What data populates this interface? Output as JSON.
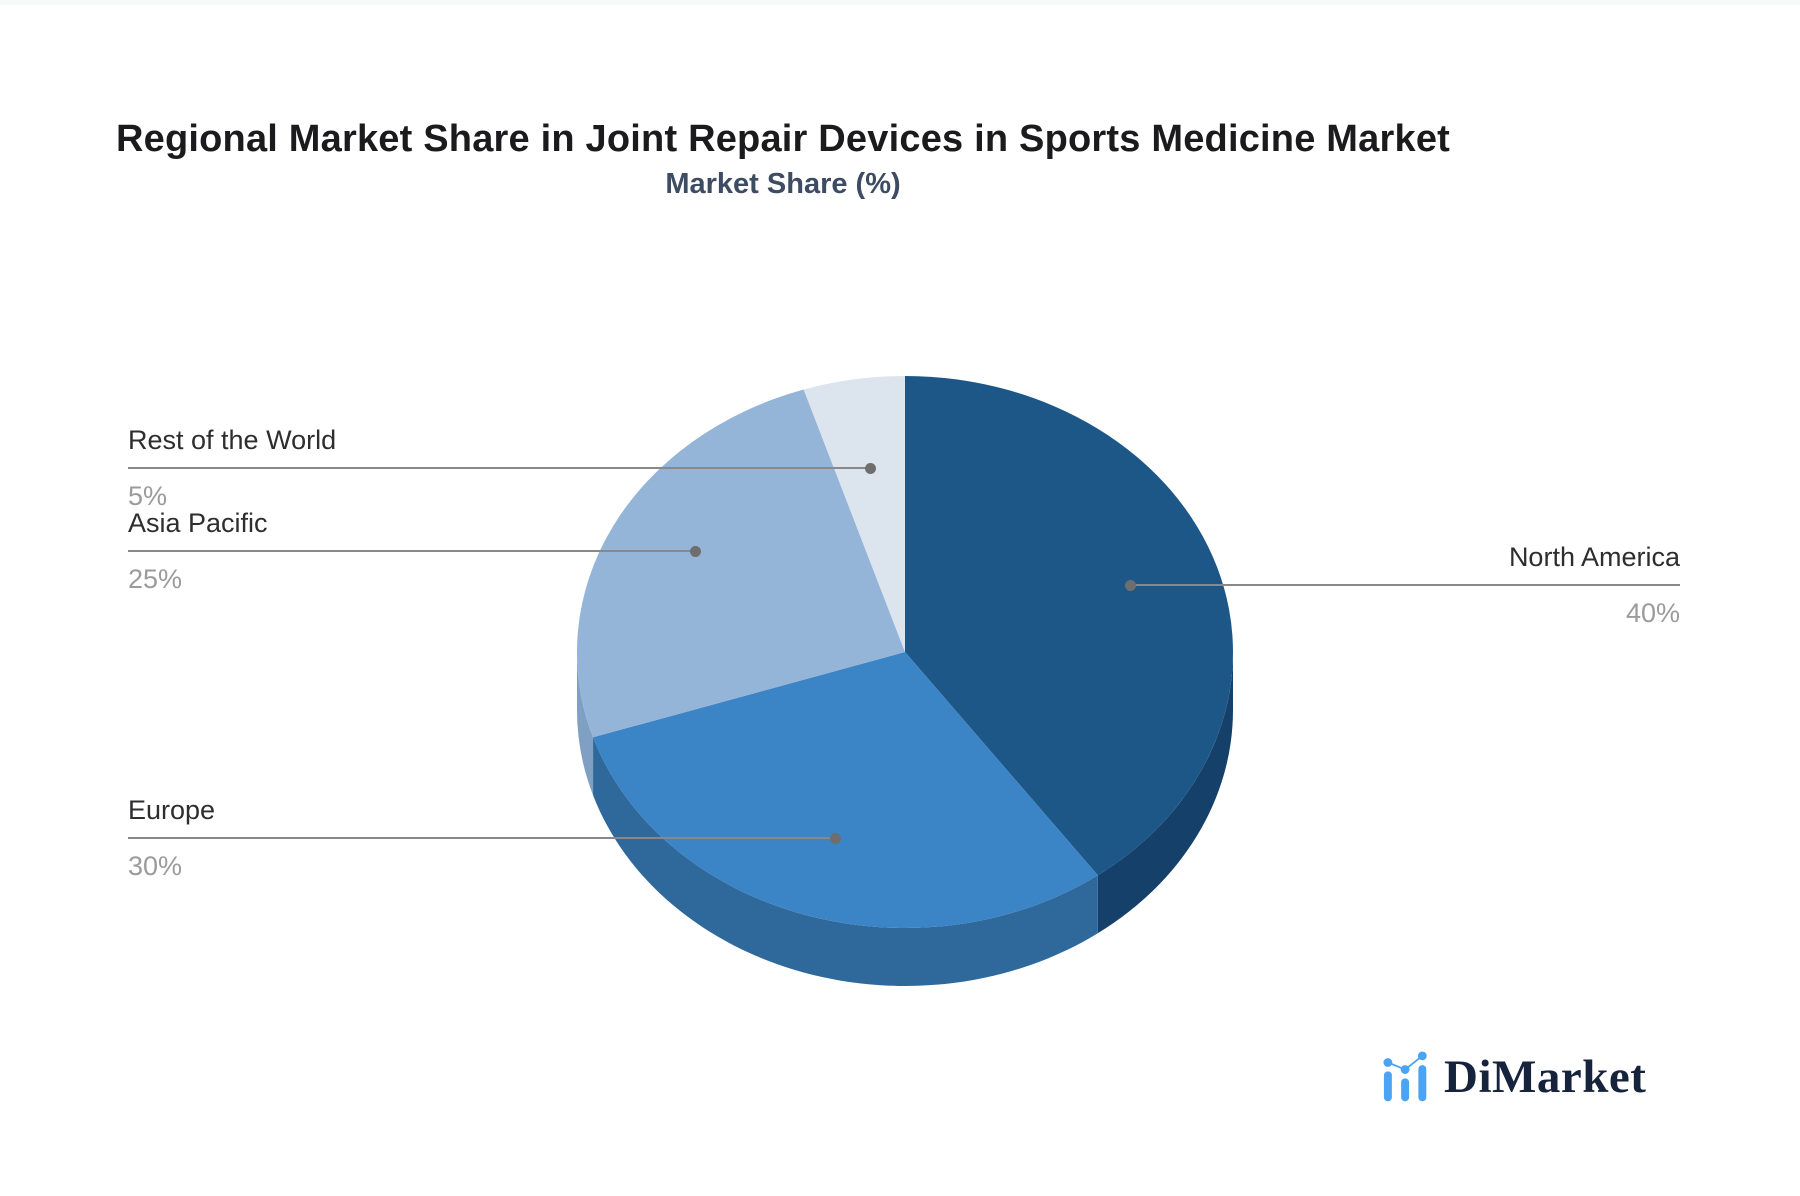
{
  "header": {
    "title": "Regional Market Share in Joint Repair Devices in Sports Medicine Market",
    "subtitle": "Market Share (%)",
    "title_color": "#1b1b1d",
    "subtitle_color": "#3e4c63"
  },
  "chart_data": {
    "type": "pie",
    "style": "3d",
    "title": "Regional Market Share in Joint Repair Devices in Sports Medicine Market",
    "subtitle": "Market Share (%)",
    "unit": "%",
    "direction": "clockwise",
    "start_angle_deg": 0,
    "categories": [
      "North America",
      "Europe",
      "Asia Pacific",
      "Rest of the World"
    ],
    "values": [
      40,
      30,
      25,
      5
    ],
    "legend": "none",
    "slices": [
      {
        "label": "North America",
        "value": 40,
        "value_label": "40%",
        "color": "#1D5788",
        "side_color": "#15406A",
        "label_side": "right"
      },
      {
        "label": "Europe",
        "value": 30,
        "value_label": "30%",
        "color": "#3B84C6",
        "side_color": "#2F689A",
        "label_side": "left"
      },
      {
        "label": "Asia Pacific",
        "value": 25,
        "value_label": "25%",
        "color": "#94B5D8",
        "side_color": "#7FA0C3",
        "label_side": "left"
      },
      {
        "label": "Rest of the World",
        "value": 5,
        "value_label": "5%",
        "color": "#DCE4EE",
        "side_color": "#C2CFDF",
        "label_side": "left"
      }
    ],
    "callout_style": {
      "line_color": "#888888",
      "dot_color": "#6E6E6E",
      "name_color": "#2E2E30",
      "value_color": "#9B9B9B"
    }
  },
  "logo": {
    "text": "DiMarket",
    "text_color": "#16233C",
    "icon": "bar-line-chart-icon",
    "icon_color": "#4BA3F3"
  }
}
